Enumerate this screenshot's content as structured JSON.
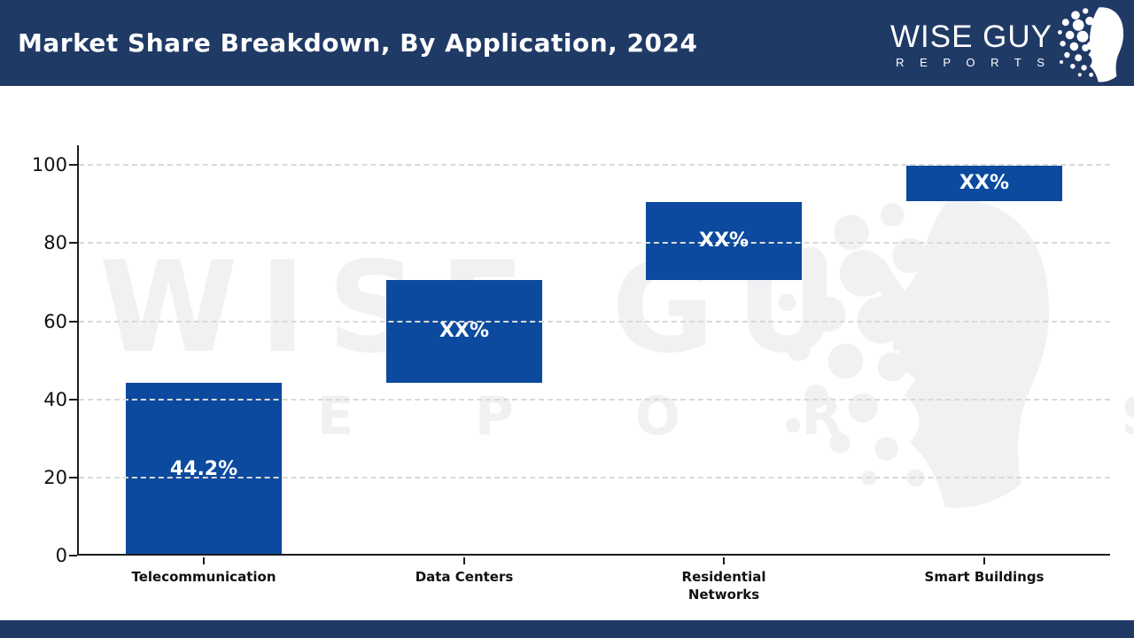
{
  "header": {
    "title": "Market Share Breakdown, By Application, 2024",
    "logo": {
      "line1": "WISE GUY",
      "line2": "R E P O R T S"
    }
  },
  "watermark": {
    "line1": "WISE GUY",
    "line2": "R E P O R T S"
  },
  "chart_data": {
    "type": "bar",
    "subtype": "waterfall",
    "title": "Market Share Breakdown, By Application, 2024",
    "categories": [
      "Telecommunication",
      "Data Centers",
      "Residential\nNetworks",
      "Smart Buildings"
    ],
    "segments": [
      {
        "category": "Telecommunication",
        "start": 0,
        "end": 44.2,
        "label": "44.2%"
      },
      {
        "category": "Data Centers",
        "start": 44.2,
        "end": 70.5,
        "label": "XX%"
      },
      {
        "category": "Residential Networks",
        "start": 70.5,
        "end": 90.5,
        "label": "XX%"
      },
      {
        "category": "Smart Buildings",
        "start": 90.7,
        "end": 99.8,
        "label": "XX%"
      }
    ],
    "yticks": [
      0,
      20,
      40,
      60,
      80,
      100
    ],
    "ylim": [
      0,
      105
    ],
    "xlabel": "",
    "ylabel": "",
    "grid": true,
    "legend": false
  },
  "colors": {
    "header_bg": "#203a66",
    "footer_bg": "#203a66",
    "bar": "#0b4a9e",
    "bar_label": "#ffffff",
    "grid": "#d9d9d9",
    "axis": "#1c1c1c",
    "watermark": "#f1f1f3"
  }
}
